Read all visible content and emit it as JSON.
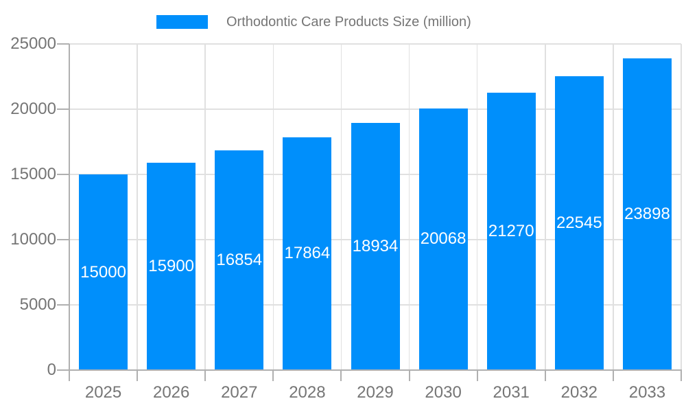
{
  "legend": {
    "label": "Orthodontic Care Products Size (million)"
  },
  "colors": {
    "bar": "#008FFB",
    "axis_line": "#b0b0b0",
    "gridline": "#e0e0e0",
    "axis_text": "#757575",
    "value_text": "#ffffff",
    "background": "#ffffff"
  },
  "chart_data": {
    "type": "bar",
    "title": "Orthodontic Care Products Size (million)",
    "series": [
      {
        "name": "Orthodontic Care Products Size (million)",
        "values": [
          15000,
          15900,
          16854,
          17864,
          18934,
          20068,
          21270,
          22545,
          23898
        ]
      }
    ],
    "categories": [
      "2025",
      "2026",
      "2027",
      "2028",
      "2029",
      "2030",
      "2031",
      "2032",
      "2033"
    ],
    "value_labels": [
      15000,
      15900,
      16854,
      17864,
      18934,
      20068,
      21270,
      22545,
      23898
    ],
    "xlabel": "",
    "ylabel": "",
    "ylim": [
      0,
      25000
    ],
    "yticks": [
      0,
      5000,
      10000,
      15000,
      20000,
      25000
    ],
    "grid": true,
    "legend_position": "top-center"
  }
}
